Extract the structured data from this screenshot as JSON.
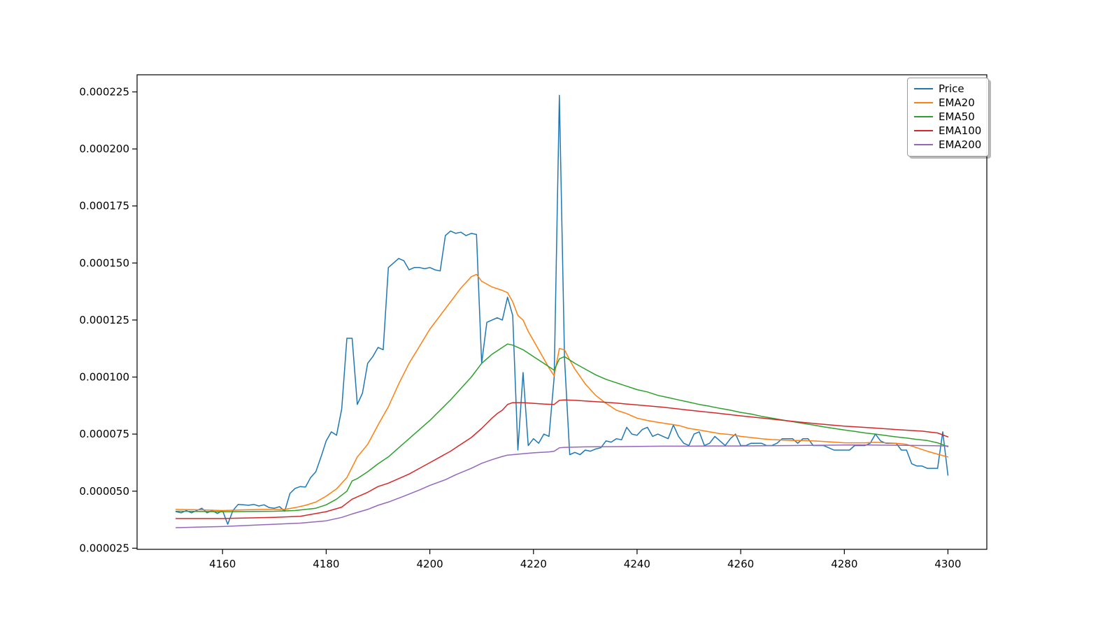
{
  "background_color": "#ffffff",
  "chart_data": {
    "type": "line",
    "title": "",
    "xlabel": "",
    "ylabel": "",
    "legend_position": "upper right",
    "grid": false,
    "y_scale_note": "all y values below are in units of 1e-6 (e.g. 41 means 0.000041)",
    "y_scale": 1e-06,
    "xlim": [
      4143.5,
      4307.5
    ],
    "ylim_scaled": [
      24.5,
      232.5
    ],
    "ylim": [
      2.45e-05,
      0.0002325
    ],
    "xticks": [
      4160,
      4180,
      4200,
      4220,
      4240,
      4260,
      4280,
      4300
    ],
    "xtick_labels": [
      "4160",
      "4180",
      "4200",
      "4220",
      "4240",
      "4260",
      "4280",
      "4300"
    ],
    "yticks": [
      25,
      50,
      75,
      100,
      125,
      150,
      175,
      200,
      225
    ],
    "ytick_labels": [
      "0.000025",
      "0.000050",
      "0.000075",
      "0.000100",
      "0.000125",
      "0.000150",
      "0.000175",
      "0.000200",
      "0.000225"
    ],
    "series": [
      {
        "name": "Price",
        "color": "#1f77b4",
        "x_start": 4151,
        "x_step": 1,
        "values": [
          41,
          40.5,
          41.5,
          40.5,
          41.5,
          42.5,
          40.5,
          41.5,
          40.2,
          41.5,
          35.5,
          41.5,
          44.2,
          44,
          43.8,
          44.2,
          43.5,
          44,
          42.8,
          42.5,
          43.2,
          41.2,
          49,
          51.2,
          52,
          51.8,
          56,
          58.5,
          65,
          72,
          76,
          74.5,
          86,
          117,
          117,
          88,
          93,
          106,
          109,
          113,
          112,
          148,
          150,
          152,
          151,
          147,
          148,
          148,
          147.5,
          148,
          147,
          146.5,
          162,
          164,
          163,
          163.5,
          162,
          163,
          162.5,
          106,
          124,
          125,
          126,
          125,
          135,
          127,
          68,
          102,
          70,
          73,
          71,
          75,
          74,
          100,
          223.5,
          108,
          66,
          67,
          66,
          68,
          67.5,
          68.5,
          69,
          72,
          71.5,
          73,
          72.5,
          78,
          75,
          74.5,
          77,
          78,
          74,
          75,
          74,
          73,
          79,
          74,
          71,
          70,
          75,
          76,
          70,
          71,
          74,
          72,
          70,
          73,
          75,
          70,
          70,
          71,
          71,
          71,
          70,
          70,
          71,
          73,
          73,
          73,
          71,
          73,
          73,
          70,
          70,
          70,
          69,
          68,
          68,
          68,
          68,
          70,
          70,
          70,
          71,
          75,
          72,
          71,
          71,
          71,
          68,
          68,
          62,
          61,
          61,
          60,
          60,
          60,
          76,
          57
        ]
      },
      {
        "name": "EMA20",
        "color": "#ff7f0e",
        "points": [
          [
            4151,
            42
          ],
          [
            4156,
            41.8
          ],
          [
            4160,
            41.5
          ],
          [
            4164,
            41.8
          ],
          [
            4168,
            42
          ],
          [
            4172,
            42
          ],
          [
            4174,
            42.8
          ],
          [
            4176,
            43.8
          ],
          [
            4178,
            45.2
          ],
          [
            4180,
            47.8
          ],
          [
            4182,
            51
          ],
          [
            4184,
            56
          ],
          [
            4186,
            65
          ],
          [
            4188,
            70.5
          ],
          [
            4190,
            79
          ],
          [
            4192,
            87
          ],
          [
            4194,
            97
          ],
          [
            4196,
            106
          ],
          [
            4198,
            113.5
          ],
          [
            4200,
            121
          ],
          [
            4202,
            127
          ],
          [
            4204,
            133
          ],
          [
            4206,
            139
          ],
          [
            4208,
            144
          ],
          [
            4209,
            145
          ],
          [
            4210,
            142
          ],
          [
            4212,
            139.5
          ],
          [
            4214,
            138
          ],
          [
            4215,
            137
          ],
          [
            4216,
            133
          ],
          [
            4217,
            127
          ],
          [
            4218,
            125
          ],
          [
            4219,
            120
          ],
          [
            4220,
            116
          ],
          [
            4221,
            112
          ],
          [
            4222,
            108
          ],
          [
            4223,
            104
          ],
          [
            4224,
            100.5
          ],
          [
            4225,
            112.5
          ],
          [
            4226,
            112
          ],
          [
            4227,
            107.5
          ],
          [
            4228,
            103.5
          ],
          [
            4230,
            97
          ],
          [
            4232,
            92
          ],
          [
            4234,
            88.5
          ],
          [
            4236,
            85.5
          ],
          [
            4238,
            84
          ],
          [
            4240,
            82
          ],
          [
            4242,
            81
          ],
          [
            4244,
            80.2
          ],
          [
            4246,
            79.5
          ],
          [
            4248,
            78.8
          ],
          [
            4250,
            77.5
          ],
          [
            4252,
            76.8
          ],
          [
            4254,
            76
          ],
          [
            4256,
            75.2
          ],
          [
            4258,
            74.8
          ],
          [
            4260,
            74
          ],
          [
            4262,
            73.5
          ],
          [
            4264,
            73
          ],
          [
            4266,
            72.6
          ],
          [
            4268,
            72.4
          ],
          [
            4270,
            72.2
          ],
          [
            4272,
            72.2
          ],
          [
            4274,
            72
          ],
          [
            4276,
            71.8
          ],
          [
            4278,
            71.5
          ],
          [
            4280,
            71.2
          ],
          [
            4282,
            71.2
          ],
          [
            4284,
            71.2
          ],
          [
            4286,
            71.4
          ],
          [
            4288,
            71.2
          ],
          [
            4290,
            71
          ],
          [
            4292,
            70.5
          ],
          [
            4294,
            69
          ],
          [
            4296,
            67.5
          ],
          [
            4298,
            66.2
          ],
          [
            4300,
            65
          ]
        ]
      },
      {
        "name": "EMA50",
        "color": "#2ca02c",
        "points": [
          [
            4151,
            41.2
          ],
          [
            4160,
            41
          ],
          [
            4170,
            41.2
          ],
          [
            4174,
            41.5
          ],
          [
            4178,
            42.5
          ],
          [
            4180,
            44
          ],
          [
            4182,
            46.5
          ],
          [
            4184,
            50
          ],
          [
            4185,
            54.5
          ],
          [
            4186,
            55.5
          ],
          [
            4188,
            58.5
          ],
          [
            4190,
            62
          ],
          [
            4192,
            65
          ],
          [
            4194,
            69
          ],
          [
            4196,
            73
          ],
          [
            4198,
            77
          ],
          [
            4200,
            81
          ],
          [
            4202,
            85.5
          ],
          [
            4204,
            90
          ],
          [
            4206,
            95
          ],
          [
            4208,
            100
          ],
          [
            4210,
            106
          ],
          [
            4212,
            110
          ],
          [
            4214,
            113
          ],
          [
            4215,
            114.5
          ],
          [
            4216,
            114
          ],
          [
            4218,
            112
          ],
          [
            4220,
            109
          ],
          [
            4222,
            106
          ],
          [
            4224,
            103
          ],
          [
            4225,
            108
          ],
          [
            4226,
            109
          ],
          [
            4228,
            106
          ],
          [
            4230,
            103.5
          ],
          [
            4232,
            101
          ],
          [
            4234,
            99
          ],
          [
            4236,
            97.5
          ],
          [
            4238,
            96
          ],
          [
            4240,
            94.5
          ],
          [
            4242,
            93.5
          ],
          [
            4244,
            92
          ],
          [
            4246,
            91
          ],
          [
            4248,
            90
          ],
          [
            4250,
            89
          ],
          [
            4252,
            88
          ],
          [
            4254,
            87.2
          ],
          [
            4256,
            86.3
          ],
          [
            4258,
            85.5
          ],
          [
            4260,
            84.5
          ],
          [
            4262,
            83.8
          ],
          [
            4264,
            82.8
          ],
          [
            4266,
            82
          ],
          [
            4268,
            81.2
          ],
          [
            4270,
            80.5
          ],
          [
            4272,
            79.7
          ],
          [
            4274,
            79
          ],
          [
            4276,
            78.2
          ],
          [
            4278,
            77.5
          ],
          [
            4280,
            76.8
          ],
          [
            4282,
            76.2
          ],
          [
            4284,
            75.5
          ],
          [
            4286,
            75
          ],
          [
            4288,
            74.4
          ],
          [
            4290,
            73.8
          ],
          [
            4292,
            73.3
          ],
          [
            4294,
            72.7
          ],
          [
            4296,
            72.2
          ],
          [
            4298,
            71.2
          ],
          [
            4300,
            69.5
          ]
        ]
      },
      {
        "name": "EMA100",
        "color": "#d62728",
        "points": [
          [
            4151,
            38
          ],
          [
            4160,
            38
          ],
          [
            4170,
            38.5
          ],
          [
            4175,
            39
          ],
          [
            4180,
            41
          ],
          [
            4183,
            43
          ],
          [
            4185,
            46.5
          ],
          [
            4188,
            49.5
          ],
          [
            4190,
            52
          ],
          [
            4192,
            53.5
          ],
          [
            4194,
            55.5
          ],
          [
            4196,
            57.5
          ],
          [
            4198,
            60
          ],
          [
            4200,
            62.5
          ],
          [
            4202,
            65
          ],
          [
            4204,
            67.5
          ],
          [
            4206,
            70.5
          ],
          [
            4208,
            73.5
          ],
          [
            4210,
            77.5
          ],
          [
            4212,
            82
          ],
          [
            4213,
            84
          ],
          [
            4214,
            85.5
          ],
          [
            4215,
            88
          ],
          [
            4216,
            88.8
          ],
          [
            4218,
            88.8
          ],
          [
            4220,
            88.5
          ],
          [
            4222,
            88.2
          ],
          [
            4224,
            88
          ],
          [
            4225,
            89.8
          ],
          [
            4226,
            90
          ],
          [
            4228,
            89.8
          ],
          [
            4230,
            89.5
          ],
          [
            4235,
            88.8
          ],
          [
            4240,
            87.8
          ],
          [
            4245,
            86.8
          ],
          [
            4250,
            85.5
          ],
          [
            4255,
            84.3
          ],
          [
            4260,
            83
          ],
          [
            4265,
            81.8
          ],
          [
            4270,
            80.6
          ],
          [
            4275,
            79.5
          ],
          [
            4280,
            78.5
          ],
          [
            4285,
            77.8
          ],
          [
            4290,
            77
          ],
          [
            4295,
            76.3
          ],
          [
            4298,
            75.5
          ],
          [
            4300,
            73.8
          ]
        ]
      },
      {
        "name": "EMA200",
        "color": "#9467bd",
        "points": [
          [
            4151,
            34
          ],
          [
            4155,
            34.2
          ],
          [
            4160,
            34.5
          ],
          [
            4165,
            35
          ],
          [
            4170,
            35.5
          ],
          [
            4175,
            36
          ],
          [
            4180,
            37
          ],
          [
            4183,
            38.5
          ],
          [
            4185,
            40
          ],
          [
            4188,
            42
          ],
          [
            4190,
            43.8
          ],
          [
            4192,
            45.2
          ],
          [
            4195,
            47.8
          ],
          [
            4198,
            50.5
          ],
          [
            4200,
            52.5
          ],
          [
            4203,
            55
          ],
          [
            4205,
            57.2
          ],
          [
            4208,
            60
          ],
          [
            4210,
            62.2
          ],
          [
            4212,
            63.8
          ],
          [
            4214,
            65.2
          ],
          [
            4215,
            65.8
          ],
          [
            4217,
            66.2
          ],
          [
            4220,
            66.8
          ],
          [
            4223,
            67.2
          ],
          [
            4224,
            67.5
          ],
          [
            4225,
            69
          ],
          [
            4226,
            69.2
          ],
          [
            4230,
            69.4
          ],
          [
            4235,
            69.5
          ],
          [
            4240,
            69.6
          ],
          [
            4245,
            69.7
          ],
          [
            4250,
            69.7
          ],
          [
            4255,
            69.8
          ],
          [
            4260,
            69.8
          ],
          [
            4265,
            69.9
          ],
          [
            4270,
            70
          ],
          [
            4275,
            70.1
          ],
          [
            4280,
            70.2
          ],
          [
            4285,
            70.2
          ],
          [
            4290,
            70.1
          ],
          [
            4295,
            70
          ],
          [
            4300,
            69.8
          ]
        ]
      }
    ]
  }
}
